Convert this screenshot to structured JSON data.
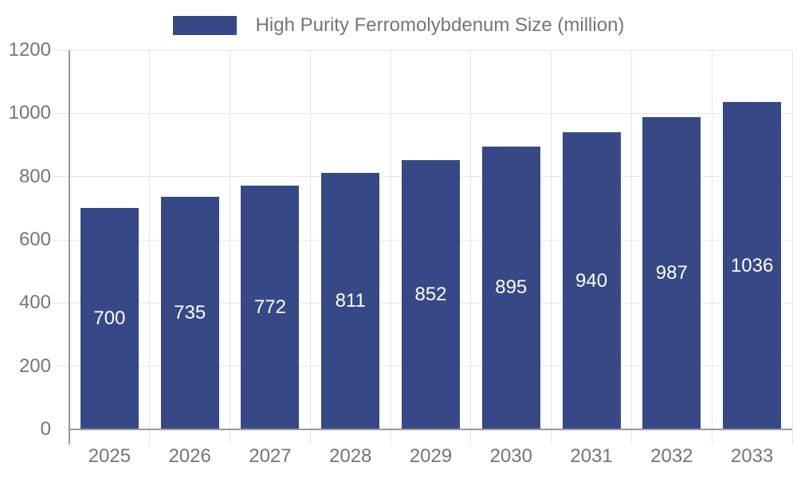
{
  "legend": {
    "label": "High Purity Ferromolybdenum Size (million)"
  },
  "chart_data": {
    "type": "bar",
    "title": "High Purity Ferromolybdenum Size (million)",
    "categories": [
      "2025",
      "2026",
      "2027",
      "2028",
      "2029",
      "2030",
      "2031",
      "2032",
      "2033"
    ],
    "values": [
      700,
      735,
      772,
      811,
      852,
      895,
      940,
      987,
      1036
    ],
    "xlabel": "",
    "ylabel": "",
    "ylim": [
      0,
      1200
    ],
    "yticks": [
      0,
      200,
      400,
      600,
      800,
      1000,
      1200
    ],
    "grid": true,
    "legend_position": "top-center",
    "value_label_position": "inside-middle",
    "colors": {
      "bar": "#36498 6",
      "bar_fill": "#36498 6",
      "accent": "#364986",
      "grid": "#e6e6e6",
      "axis_line": "#9a9a9a",
      "axis_text": "#757575",
      "value_label": "#ffffff",
      "background": "#ffffff"
    }
  }
}
